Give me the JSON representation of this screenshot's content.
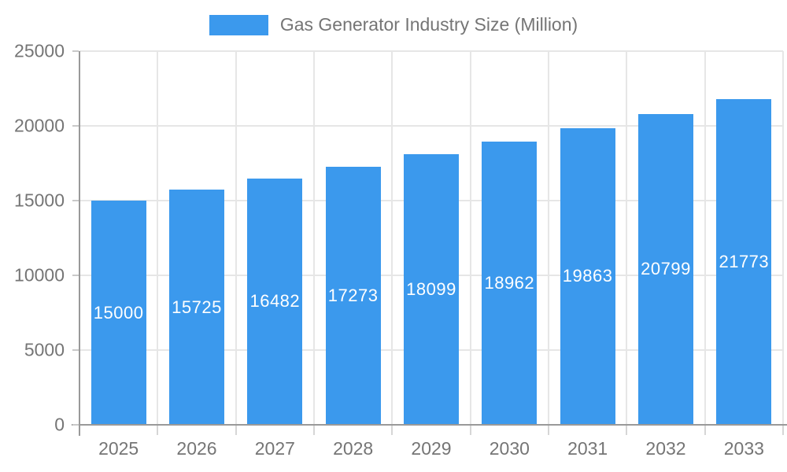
{
  "legend": {
    "label": "Gas Generator Industry Size (Million)"
  },
  "chart_data": {
    "type": "bar",
    "title": "Gas Generator Industry Size (Million)",
    "categories": [
      "2025",
      "2026",
      "2027",
      "2028",
      "2029",
      "2030",
      "2031",
      "2032",
      "2033"
    ],
    "values": [
      15000,
      15725,
      16482,
      17273,
      18099,
      18962,
      19863,
      20799,
      21773
    ],
    "xlabel": "",
    "ylabel": "",
    "ylim": [
      0,
      25000
    ],
    "y_ticks": [
      0,
      5000,
      10000,
      15000,
      20000,
      25000
    ],
    "grid": true,
    "legend_position": "top",
    "bar_labels_inside": true
  },
  "colors": {
    "bar": "#3b99ed",
    "grid": "#e6e6e6",
    "axis": "#999999",
    "tick": "#c9c9c9",
    "text": "#757575",
    "bar_label": "#ffffff"
  }
}
